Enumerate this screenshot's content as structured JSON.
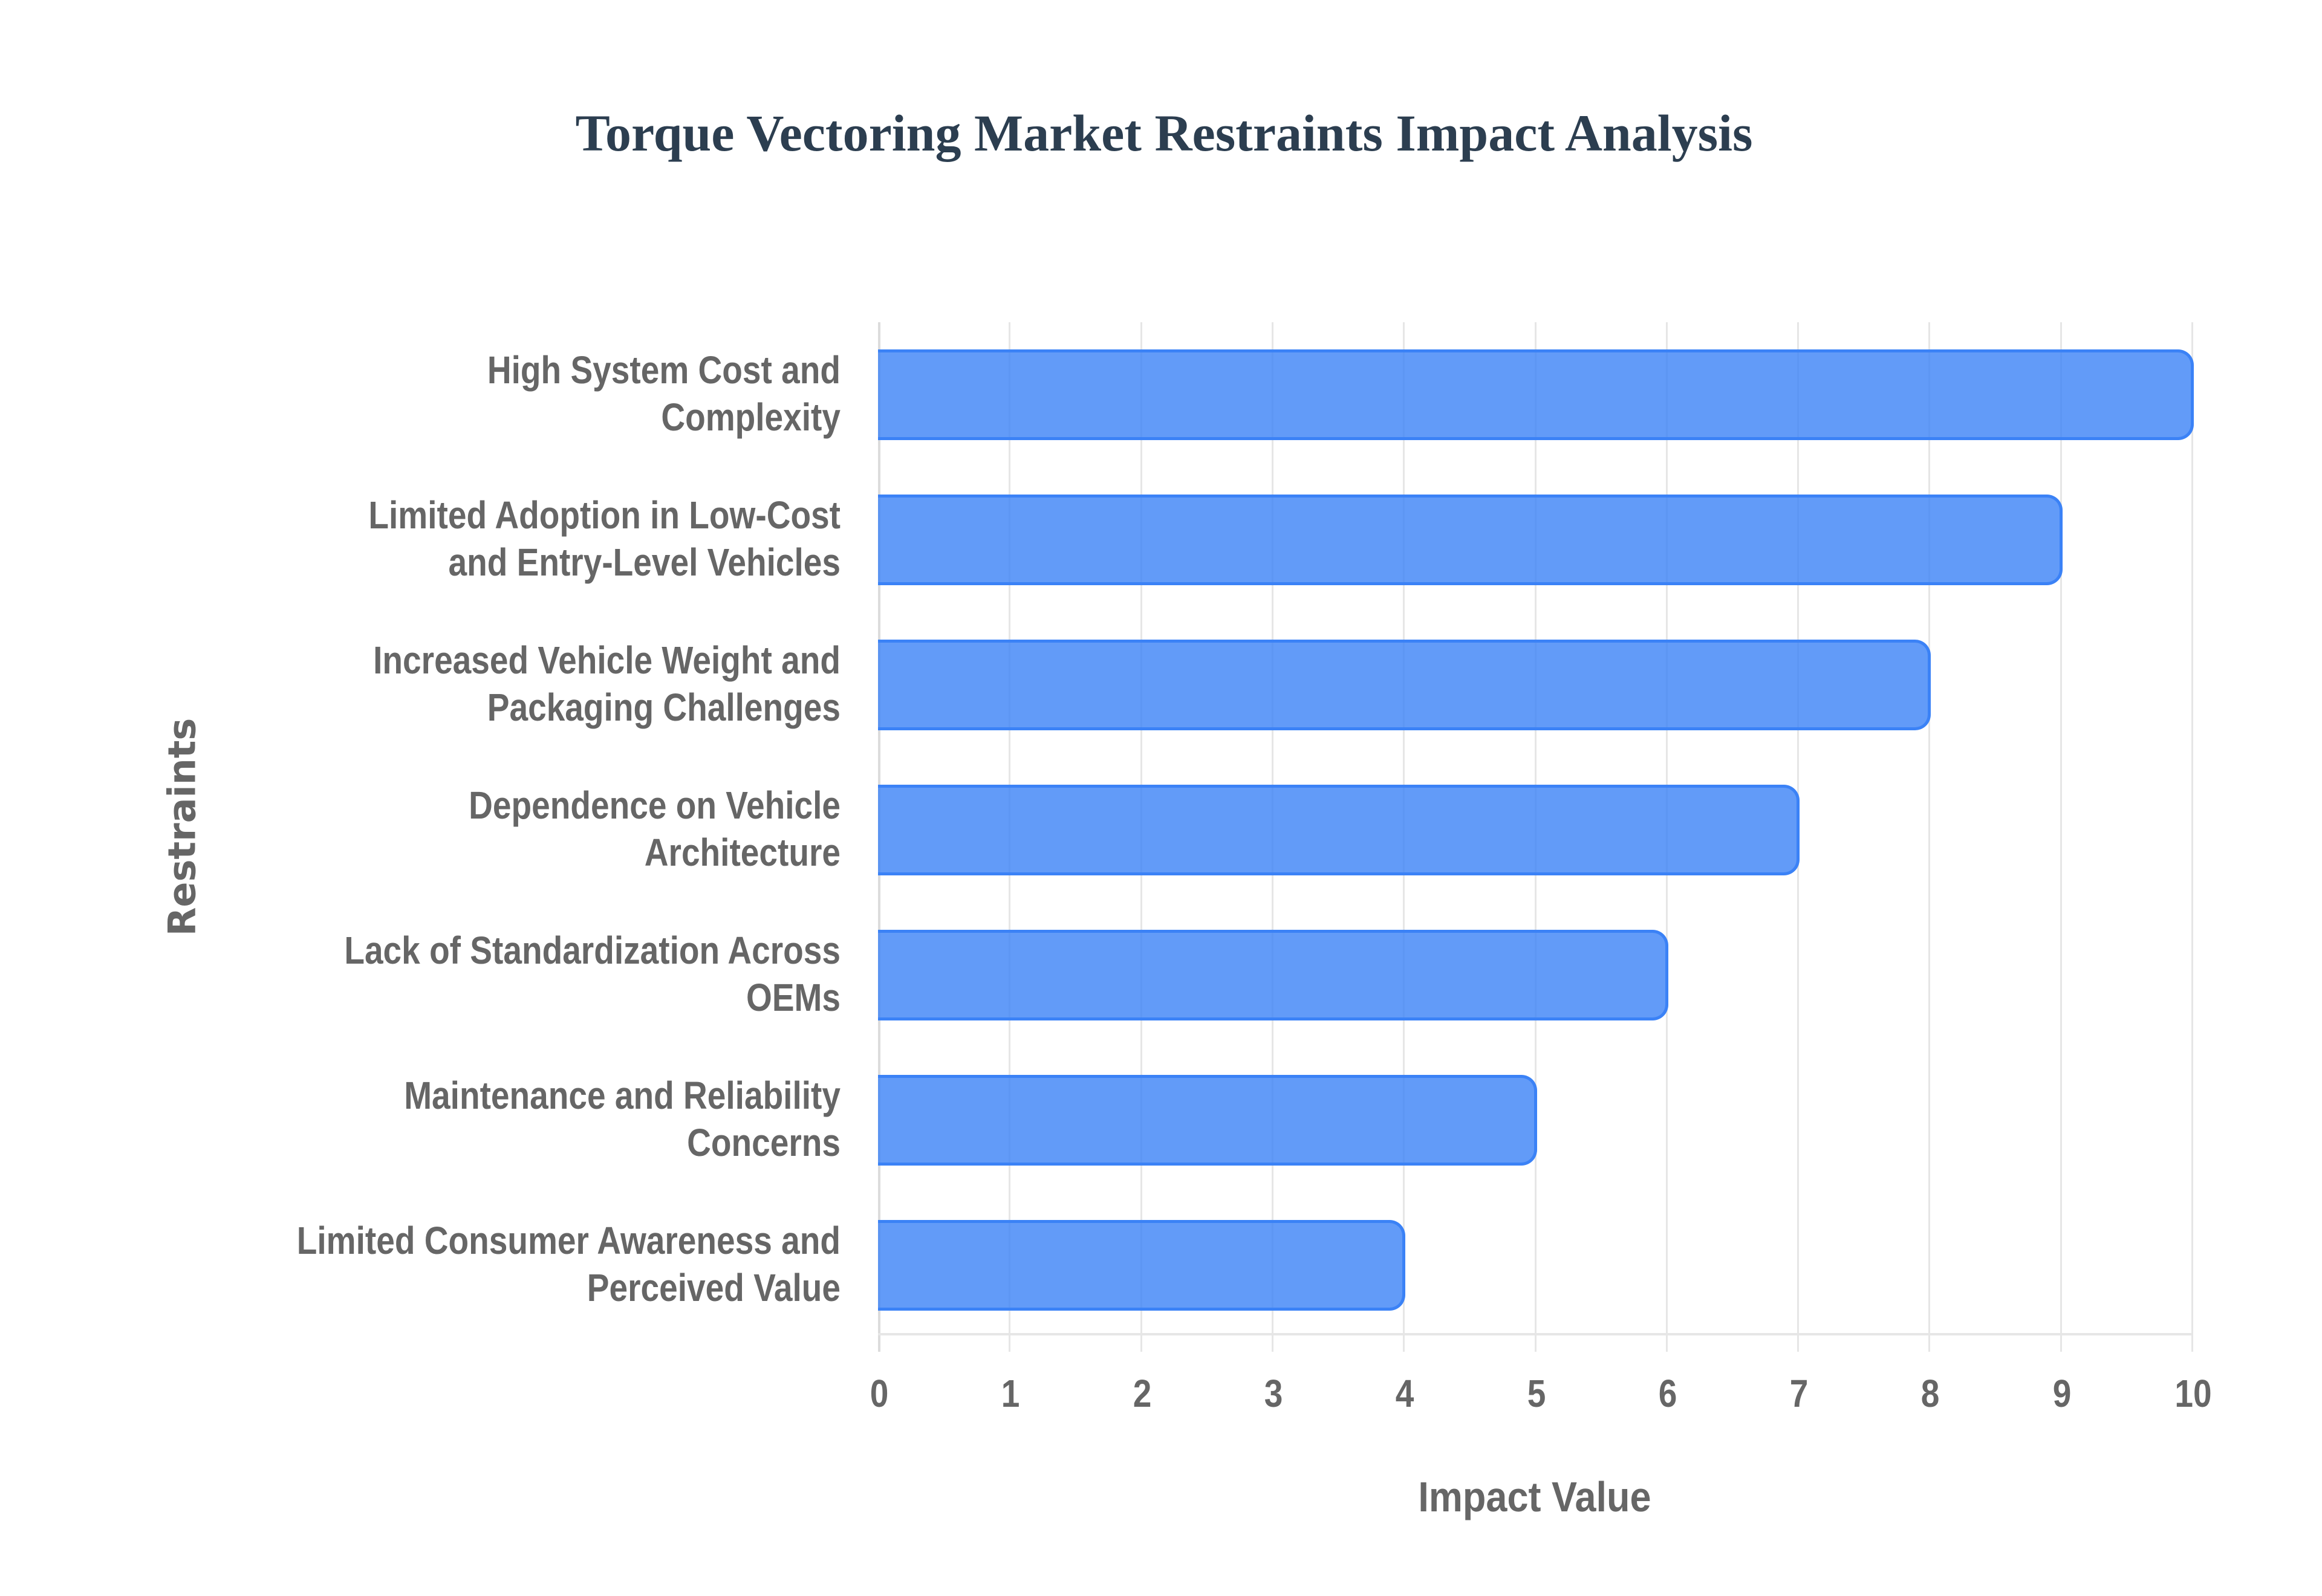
{
  "chart_data": {
    "type": "bar",
    "orientation": "horizontal",
    "title": "Torque Vectoring Market Restraints Impact Analysis",
    "xlabel": "Impact Value",
    "ylabel": "Restraints",
    "xlim": [
      0,
      10
    ],
    "xticks": [
      "0",
      "1",
      "2",
      "3",
      "4",
      "5",
      "6",
      "7",
      "8",
      "9",
      "10"
    ],
    "grid": true,
    "legend": null,
    "categories": [
      "High System Cost and Complexity",
      "Limited Adoption in Low-Cost and Entry-Level Vehicles",
      "Increased Vehicle Weight and Packaging Challenges",
      "Dependence on Vehicle Architecture",
      "Lack of Standardization Across OEMs",
      "Maintenance and Reliability Concerns",
      "Limited Consumer Awareness and Perceived Value"
    ],
    "category_lines": [
      [
        "High System Cost and",
        "Complexity"
      ],
      [
        "Limited Adoption in Low-Cost",
        "and Entry-Level Vehicles"
      ],
      [
        "Increased Vehicle Weight and",
        "Packaging Challenges"
      ],
      [
        "Dependence on Vehicle",
        "Architecture"
      ],
      [
        "Lack of Standardization Across",
        "OEMs"
      ],
      [
        "Maintenance and Reliability",
        "Concerns"
      ],
      [
        "Limited Consumer Awareness and",
        "Perceived Value"
      ]
    ],
    "values": [
      10,
      9,
      8,
      7,
      6,
      5,
      4
    ],
    "colors": {
      "bar_fill": "#6199f3",
      "bar_border": "#3b82f6",
      "title": "#2c3e50",
      "text": "#666666",
      "grid": "#e6e6e6"
    }
  }
}
